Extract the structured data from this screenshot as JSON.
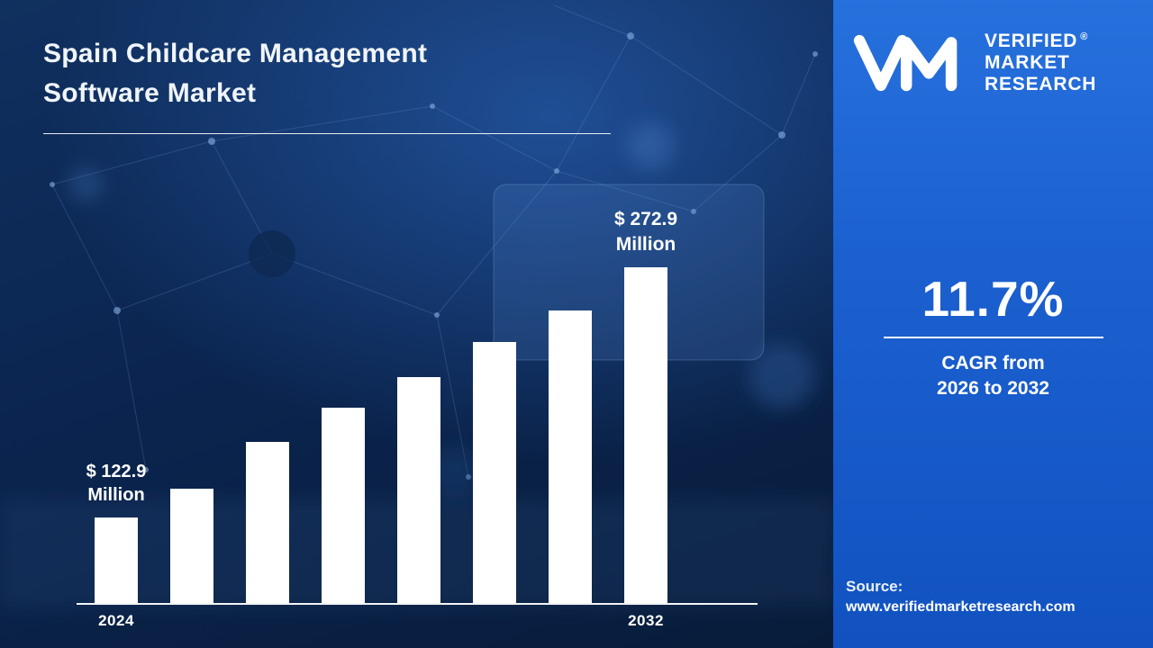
{
  "title_line1": "Spain Childcare Management",
  "title_line2": "Software Market",
  "branding": {
    "logo_line1": "VERIFIED",
    "logo_line2": "MARKET",
    "logo_line3": "RESEARCH",
    "registered": "®",
    "monogram": "vm-monogram"
  },
  "stats": {
    "cagr": "11.7%",
    "cagr_caption_line1": "CAGR from",
    "cagr_caption_line2": "2026 to 2032"
  },
  "source": {
    "label": "Source:",
    "url": "www.verifiedmarketresearch.com"
  },
  "colors": {
    "panel_blue": "#1c60d0",
    "background_navy": "#0b2550",
    "bar_white": "#ffffff"
  },
  "chart_data": {
    "type": "bar",
    "title": "Spain Childcare Management Software Market",
    "x_axis_labels_visible": [
      "2024",
      "2032"
    ],
    "values": [
      122.9,
      140.0,
      168.0,
      189.0,
      207.0,
      228.0,
      247.0,
      272.9
    ],
    "unit": "USD Million",
    "labeled_values": {
      "first": {
        "line1": "$ 122.9",
        "line2": "Million"
      },
      "last": {
        "line1": "$ 272.9",
        "line2": "Million"
      }
    },
    "ylim": [
      0,
      300
    ],
    "grid": false,
    "legend": "none",
    "bar_color": "#ffffff"
  }
}
